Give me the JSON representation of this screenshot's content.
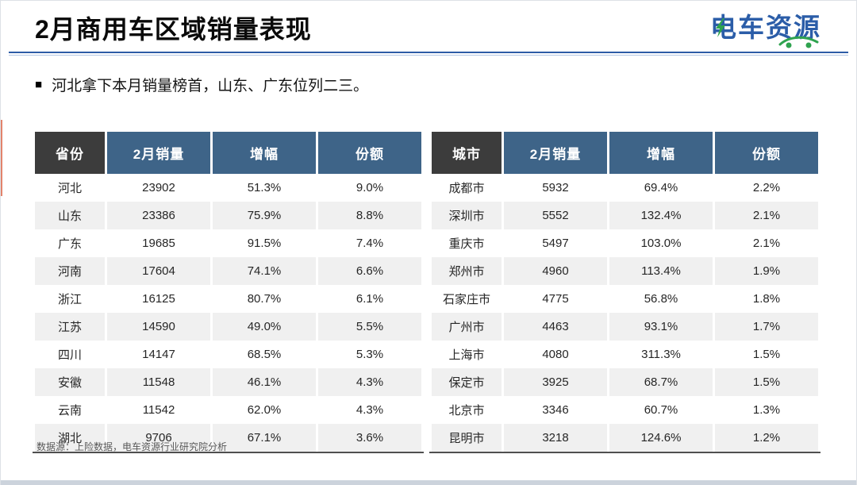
{
  "header": {
    "title": "2月商用车区域销量表现",
    "logo_text": "电车资源"
  },
  "bullet": {
    "marker": "■",
    "text": "河北拿下本月销量榜首，山东、广东位列二三。"
  },
  "footer": {
    "source": "数据源：上险数据，电车资源行业研究院分析"
  },
  "colors": {
    "accent_blue_line": "#2D5CA6",
    "table_header_blue": "#3E6488",
    "table_header_dark": "#3C3C3C",
    "row_alt_gray": "#F0F0F0",
    "table_bottom_border": "#4F4F4F",
    "logo_blue": "#2B5DA8",
    "logo_green": "#2FA34F",
    "footer_gray": "#595959",
    "bottom_strip": "#CCD3DC"
  },
  "chart_data": [
    {
      "type": "table",
      "headers": [
        "省份",
        "2月销量",
        "增幅",
        "份额"
      ],
      "rows": [
        [
          "河北",
          "23902",
          "51.3%",
          "9.0%"
        ],
        [
          "山东",
          "23386",
          "75.9%",
          "8.8%"
        ],
        [
          "广东",
          "19685",
          "91.5%",
          "7.4%"
        ],
        [
          "河南",
          "17604",
          "74.1%",
          "6.6%"
        ],
        [
          "浙江",
          "16125",
          "80.7%",
          "6.1%"
        ],
        [
          "江苏",
          "14590",
          "49.0%",
          "5.5%"
        ],
        [
          "四川",
          "14147",
          "68.5%",
          "5.3%"
        ],
        [
          "安徽",
          "11548",
          "46.1%",
          "4.3%"
        ],
        [
          "云南",
          "11542",
          "62.0%",
          "4.3%"
        ],
        [
          "湖北",
          "9706",
          "67.1%",
          "3.6%"
        ]
      ]
    },
    {
      "type": "table",
      "headers": [
        "城市",
        "2月销量",
        "增幅",
        "份额"
      ],
      "rows": [
        [
          "成都市",
          "5932",
          "69.4%",
          "2.2%"
        ],
        [
          "深圳市",
          "5552",
          "132.4%",
          "2.1%"
        ],
        [
          "重庆市",
          "5497",
          "103.0%",
          "2.1%"
        ],
        [
          "郑州市",
          "4960",
          "113.4%",
          "1.9%"
        ],
        [
          "石家庄市",
          "4775",
          "56.8%",
          "1.8%"
        ],
        [
          "广州市",
          "4463",
          "93.1%",
          "1.7%"
        ],
        [
          "上海市",
          "4080",
          "311.3%",
          "1.5%"
        ],
        [
          "保定市",
          "3925",
          "68.7%",
          "1.5%"
        ],
        [
          "北京市",
          "3346",
          "60.7%",
          "1.3%"
        ],
        [
          "昆明市",
          "3218",
          "124.6%",
          "1.2%"
        ]
      ]
    }
  ]
}
